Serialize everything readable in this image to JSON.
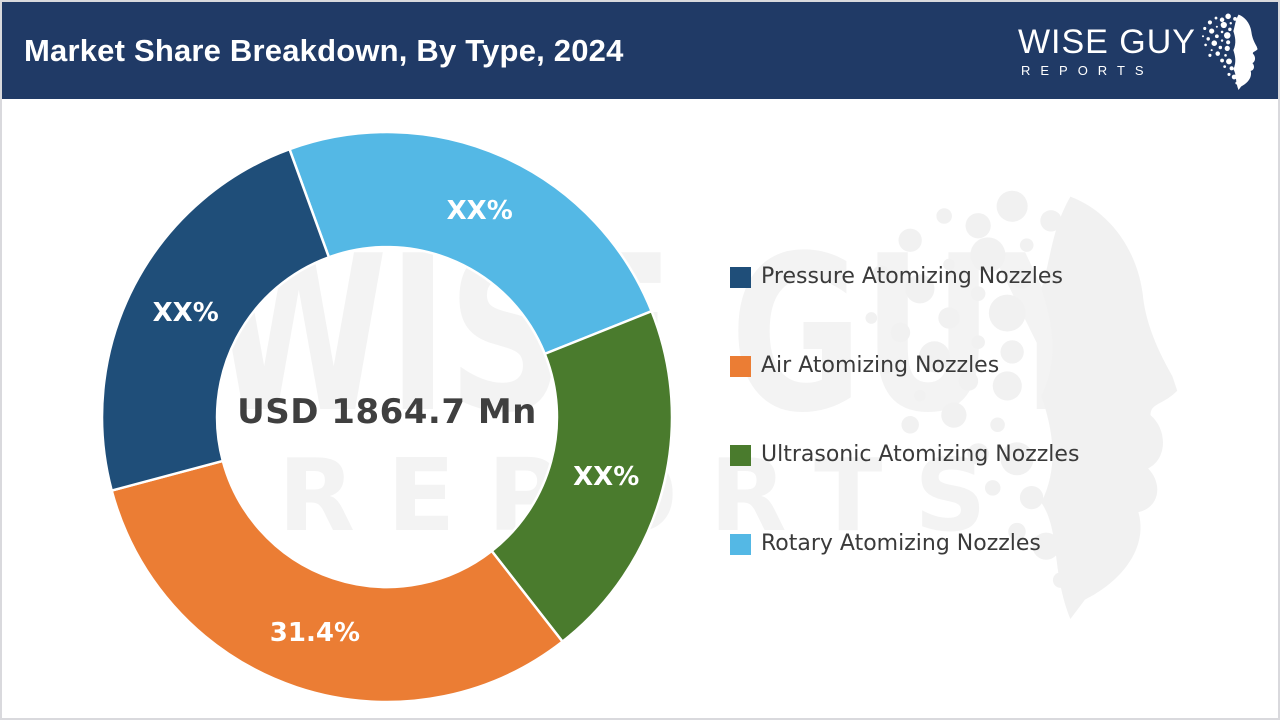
{
  "header": {
    "title": "Market Share Breakdown, By Type, 2024",
    "logo": {
      "line1": "WISE GUY",
      "line2": "REPORTS"
    }
  },
  "watermark": {
    "line1": "WISE GUY",
    "line2": "REPORTS"
  },
  "colors": {
    "header_background": "#203A66",
    "segment_gap": "#FFFFFF",
    "segment_label_text": "#FFFFFF",
    "center_text": "#3F3F3F",
    "legend_text": "#3A3A3A",
    "watermark_text": "#F3F3F3",
    "watermark_face": "#F1F1F1",
    "logo_color": "#FFFFFF",
    "bottom_border": "#D9D9DD"
  },
  "chart_data": {
    "type": "pie",
    "variant": "donut",
    "title": "Market Share Breakdown, By Type, 2024",
    "center_label": "USD 1864.7 Mn",
    "start_angle_deg": 340,
    "draw_order": [
      3,
      2,
      1,
      0
    ],
    "legend_position": "right",
    "series": [
      {
        "name": "Pressure Atomizing Nozzles",
        "value_pct": 23.6,
        "display_label": "XX%",
        "color": "#1F4E79"
      },
      {
        "name": "Air Atomizing Nozzles",
        "value_pct": 31.4,
        "display_label": "31.4%",
        "color": "#EB7D34"
      },
      {
        "name": "Ultrasonic Atomizing Nozzles",
        "value_pct": 20.5,
        "display_label": "XX%",
        "color": "#4A7B2D"
      },
      {
        "name": "Rotary Atomizing Nozzles",
        "value_pct": 24.5,
        "display_label": "XX%",
        "color": "#54B8E5"
      }
    ]
  }
}
